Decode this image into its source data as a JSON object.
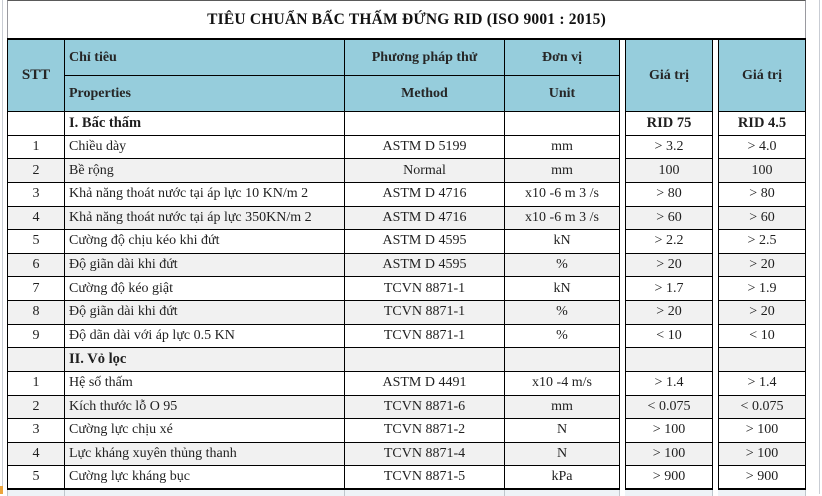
{
  "page": {
    "title": "TIÊU CHUẨN BẤC THẤM ĐỨNG RID (ISO 9001 : 2015)"
  },
  "colors": {
    "header_bg": "#96CDDC",
    "stripe_bg": "#F1F1F1",
    "border": "#000000",
    "body_text": "#1F1F1F",
    "partial_row_bg": "#EEF3F7",
    "edge_line": "#C9CDD4",
    "edge_marker": "#ECA43C"
  },
  "table": {
    "header": {
      "stt": "STT",
      "property_vi": "Chỉ tiêu",
      "property_en": "Properties",
      "method_vi": "Phương pháp thử",
      "method_en": "Method",
      "unit_vi": "Đơn vị",
      "unit_en": "Unit",
      "value_col_1": "Giá trị",
      "value_col_2": "Giá trị"
    },
    "rows": [
      {
        "type": "section",
        "stt": "",
        "label": "I. Bấc thấm",
        "method": "",
        "unit": "",
        "v1": "RID 75",
        "v2": "RID 4.5",
        "shade": false,
        "bold_values": true
      },
      {
        "type": "data",
        "stt": "1",
        "label": "Chiều dày",
        "method": "ASTM D 5199",
        "unit": "mm",
        "v1": "> 3.2",
        "v2": "> 4.0",
        "shade": false,
        "bold_values": false
      },
      {
        "type": "data",
        "stt": "2",
        "label": "Bề rộng",
        "method": "Normal",
        "unit": "mm",
        "v1": "100",
        "v2": "100",
        "shade": true,
        "bold_values": false
      },
      {
        "type": "data",
        "stt": "3",
        "label": "Khả năng thoát nước tại áp lực 10 KN/m 2",
        "method": "ASTM D 4716",
        "unit": "x10 -6 m 3 /s",
        "v1": "> 80",
        "v2": "> 80",
        "shade": false,
        "bold_values": false
      },
      {
        "type": "data",
        "stt": "4",
        "label": "Khả năng thoát nước tại áp lực 350KN/m 2",
        "method": "ASTM D 4716",
        "unit": "x10 -6 m 3 /s",
        "v1": "> 60",
        "v2": "> 60",
        "shade": true,
        "bold_values": false
      },
      {
        "type": "data",
        "stt": "5",
        "label": "Cường độ chịu kéo khi đứt",
        "method": "ASTM D 4595",
        "unit": "kN",
        "v1": "> 2.2",
        "v2": "> 2.5",
        "shade": false,
        "bold_values": false
      },
      {
        "type": "data",
        "stt": "6",
        "label": "Độ giãn dài khi đứt",
        "method": "ASTM D 4595",
        "unit": "%",
        "v1": "> 20",
        "v2": "> 20",
        "shade": true,
        "bold_values": false
      },
      {
        "type": "data",
        "stt": "7",
        "label": "Cường độ kéo giật",
        "method": "TCVN 8871-1",
        "unit": "kN",
        "v1": "> 1.7",
        "v2": "> 1.9",
        "shade": false,
        "bold_values": false
      },
      {
        "type": "data",
        "stt": "8",
        "label": "Độ giãn dài khi đứt",
        "method": "TCVN 8871-1",
        "unit": "%",
        "v1": "> 20",
        "v2": "> 20",
        "shade": true,
        "bold_values": false
      },
      {
        "type": "data",
        "stt": "9",
        "label": "Độ dãn dài với áp lực 0.5 KN",
        "method": "TCVN 8871-1",
        "unit": "%",
        "v1": "< 10",
        "v2": "< 10",
        "shade": false,
        "bold_values": false
      },
      {
        "type": "section",
        "stt": "",
        "label": "II. Vỏ lọc",
        "method": "",
        "unit": "",
        "v1": "",
        "v2": "",
        "shade": true,
        "bold_values": false
      },
      {
        "type": "data",
        "stt": "1",
        "label": "Hệ số thấm",
        "method": "ASTM D 4491",
        "unit": "x10 -4 m/s",
        "v1": "> 1.4",
        "v2": "> 1.4",
        "shade": false,
        "bold_values": false
      },
      {
        "type": "data",
        "stt": "2",
        "label": "Kích thước lỗ O 95",
        "method": "TCVN 8871-6",
        "unit": "mm",
        "v1": "< 0.075",
        "v2": "< 0.075",
        "shade": true,
        "bold_values": false
      },
      {
        "type": "data",
        "stt": "3",
        "label": "Cường lực chịu xé",
        "method": "TCVN 8871-2",
        "unit": "N",
        "v1": "> 100",
        "v2": "> 100",
        "shade": false,
        "bold_values": false
      },
      {
        "type": "data",
        "stt": "4",
        "label": "Lực kháng xuyên thủng thanh",
        "method": "TCVN 8871-4",
        "unit": "N",
        "v1": "> 100",
        "v2": "> 100",
        "shade": true,
        "bold_values": false
      },
      {
        "type": "data",
        "stt": "5",
        "label": "Cường lực kháng bục",
        "method": "TCVN 8871-5",
        "unit": "kPa",
        "v1": "> 900",
        "v2": "> 900",
        "shade": false,
        "bold_values": false
      }
    ]
  }
}
